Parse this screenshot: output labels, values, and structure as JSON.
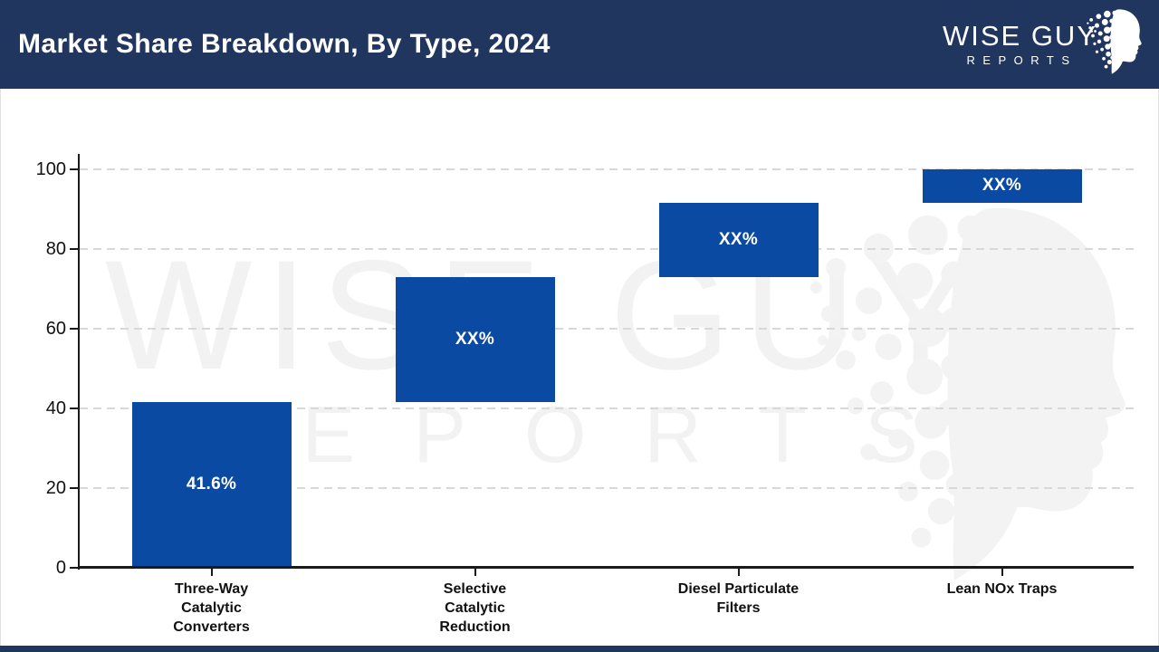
{
  "header": {
    "title": "Market Share Breakdown, By Type, 2024",
    "brand": {
      "name": "WISE GUY",
      "sub": "REPORTS"
    }
  },
  "watermark": {
    "line1": "WISE GUY",
    "line2": "REPORTS"
  },
  "chart_data": {
    "type": "bar",
    "subtype": "waterfall",
    "title": "Market Share Breakdown, By Type, 2024",
    "xlabel": "",
    "ylabel": "",
    "categories": [
      "Three-Way\nCatalytic\nConverters",
      "Selective\nCatalytic\nReduction",
      "Diesel Particulate\nFilters",
      "Lean NOx Traps"
    ],
    "bars": [
      {
        "category": "Three-Way Catalytic Converters",
        "start": 0,
        "end": 41.6,
        "label": "41.6%"
      },
      {
        "category": "Selective Catalytic Reduction",
        "start": 41.6,
        "end": 73.0,
        "label": "XX%"
      },
      {
        "category": "Diesel Particulate Filters",
        "start": 73.0,
        "end": 91.6,
        "label": "XX%"
      },
      {
        "category": "Lean NOx Traps",
        "start": 91.6,
        "end": 100.0,
        "label": "XX%"
      }
    ],
    "ylim": [
      0,
      100
    ],
    "yticks": [
      0,
      20,
      40,
      60,
      80,
      100
    ],
    "grid": "horizontal dashed",
    "legend": "none",
    "bar_color": "#0b4aa2",
    "bar_label_color": "#ffffff"
  },
  "colors": {
    "header_bg": "#21365f",
    "footer_bg": "#21365f",
    "bar": "#0b4aa2",
    "grid": "#d8d8d8",
    "axis": "#1a1a1a",
    "watermark": "#f2f2f2",
    "title_text": "#ffffff"
  }
}
